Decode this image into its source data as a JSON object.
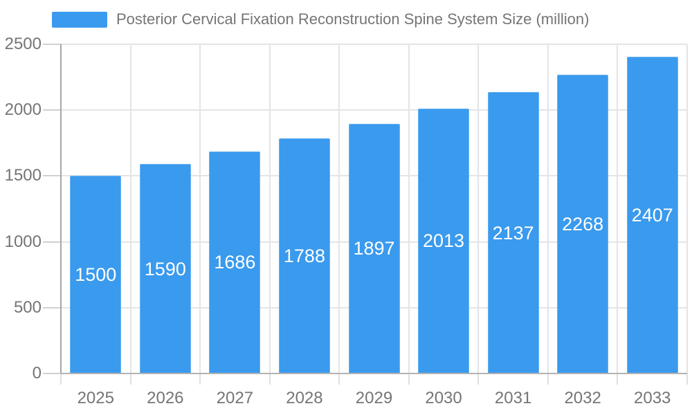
{
  "chart_data": {
    "type": "bar",
    "title": "",
    "legend_label": "Posterior Cervical Fixation Reconstruction Spine System Size (million)",
    "categories": [
      "2025",
      "2026",
      "2027",
      "2028",
      "2029",
      "2030",
      "2031",
      "2032",
      "2033"
    ],
    "values": [
      1500,
      1590,
      1686,
      1788,
      1897,
      2013,
      2137,
      2268,
      2407
    ],
    "series": [
      {
        "name": "Posterior Cervical Fixation Reconstruction Spine System Size (million)",
        "values": [
          1500,
          1590,
          1686,
          1788,
          1897,
          2013,
          2137,
          2268,
          2407
        ]
      }
    ],
    "xlabel": "",
    "ylabel": "",
    "ylim": [
      0,
      2500
    ],
    "yticks": [
      0,
      500,
      1000,
      1500,
      2000,
      2500
    ],
    "grid": true,
    "legend_position": "top-left",
    "bar_labels_shown": true,
    "bar_label_position": "center"
  },
  "colors": {
    "bar": "#3A9AED",
    "gridline": "#e4e4e4",
    "axis_line": "#a6a6a6",
    "baseline": "#b3b3b3",
    "tick": "#d0d0d0",
    "category_tick": "#e0e0e0",
    "label_text": "#757575",
    "bar_label_text": "#ffffff",
    "background": "#ffffff"
  }
}
